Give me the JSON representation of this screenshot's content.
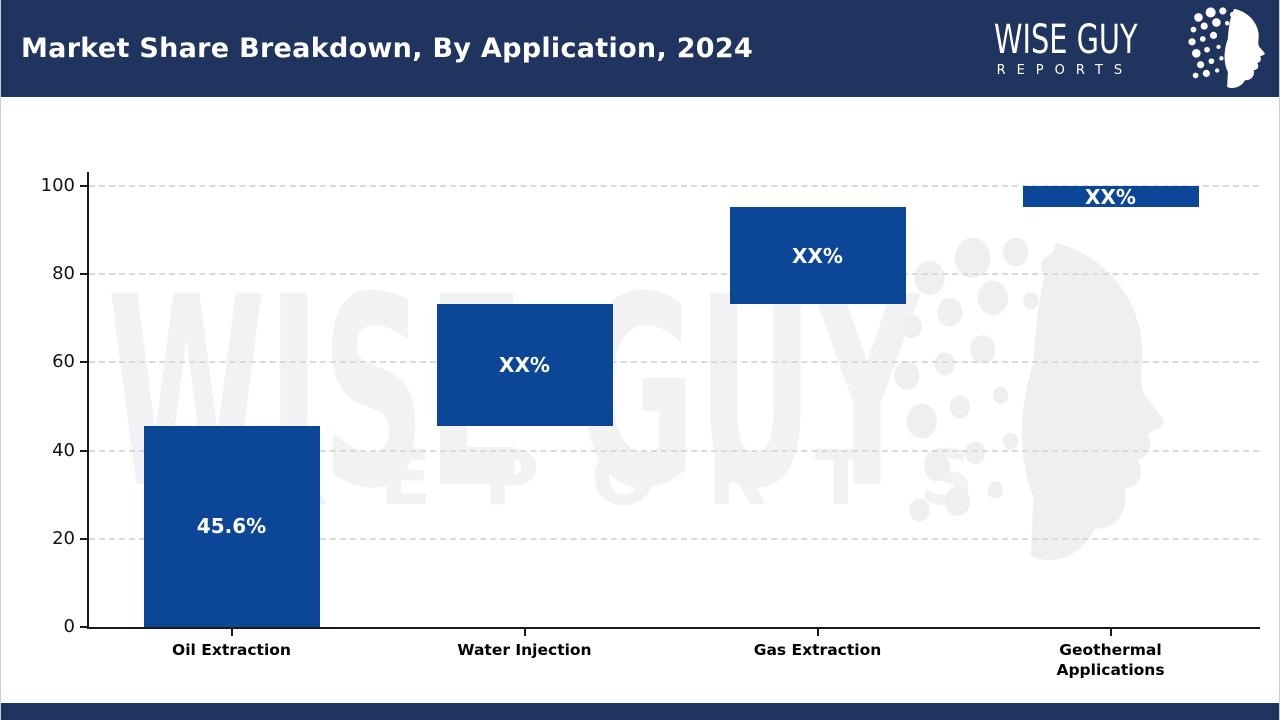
{
  "header": {
    "title": "Market Share Breakdown, By Application, 2024",
    "logo": {
      "wordmark": "WISE GUY",
      "subtitle": "REPORTS"
    }
  },
  "watermark": {
    "line1": "WISE GUY",
    "line2": "REPORTS"
  },
  "colors": {
    "header_bg": "#203460",
    "footer_bg": "#203460",
    "bar": "#0c4696",
    "bar_label_text": "#ffffff",
    "axis": "#1a1a1a",
    "gridline": "#dadada",
    "tick_text": "#141414",
    "title_text": "#ffffff",
    "watermark_text": "#f2f2f4",
    "watermark_face": "#efeff2",
    "logo_text": "#ffffff"
  },
  "chart_data": {
    "type": "bar",
    "subtype": "waterfall-stacked",
    "title": "Market Share Breakdown, By Application, 2024",
    "categories": [
      "Oil Extraction",
      "Water Injection",
      "Gas Extraction",
      "Geothermal\nApplications"
    ],
    "segments": [
      {
        "category": "Oil Extraction",
        "start": 0.0,
        "end": 45.6,
        "value": 45.6,
        "label": "45.6%"
      },
      {
        "category": "Water Injection",
        "start": 45.6,
        "end": 73.2,
        "value": 27.6,
        "label": "XX%"
      },
      {
        "category": "Gas Extraction",
        "start": 73.2,
        "end": 95.2,
        "value": 22.0,
        "label": "XX%"
      },
      {
        "category": "Geothermal\nApplications",
        "start": 95.2,
        "end": 100.0,
        "value": 4.8,
        "label": "XX%"
      }
    ],
    "yticks": [
      0,
      20,
      40,
      60,
      80,
      100
    ],
    "ylim": [
      0,
      103
    ],
    "xlabel": "",
    "ylabel": "",
    "grid": "horizontal-dashed",
    "legend": "none"
  }
}
